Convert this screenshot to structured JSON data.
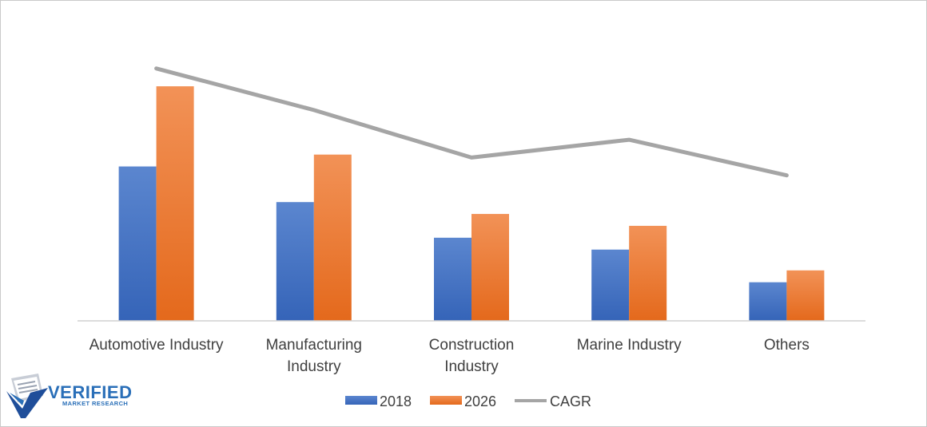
{
  "chart_data": {
    "type": "bar",
    "categories": [
      [
        "Automotive Industry"
      ],
      [
        "Manufacturing",
        "Industry"
      ],
      [
        "Construction",
        "Industry"
      ],
      [
        "Marine Industry"
      ],
      [
        "Others"
      ]
    ],
    "series": [
      {
        "name": "2018",
        "kind": "bar",
        "color": "#4472c4",
        "values": [
          52,
          40,
          28,
          24,
          13
        ]
      },
      {
        "name": "2026",
        "kind": "bar",
        "color": "#ed7d31",
        "values": [
          79,
          56,
          36,
          32,
          17
        ]
      },
      {
        "name": "CAGR",
        "kind": "line",
        "color": "#a5a5a5",
        "values": [
          85,
          71,
          55,
          61,
          49
        ]
      }
    ],
    "ylim": [
      0,
      100
    ],
    "grid": false,
    "legend": "bottom",
    "title": "",
    "xlabel": "",
    "ylabel": ""
  },
  "logo": {
    "name": "VERIFIED",
    "tagline": "MARKET RESEARCH",
    "color": "#2a6fb8"
  }
}
